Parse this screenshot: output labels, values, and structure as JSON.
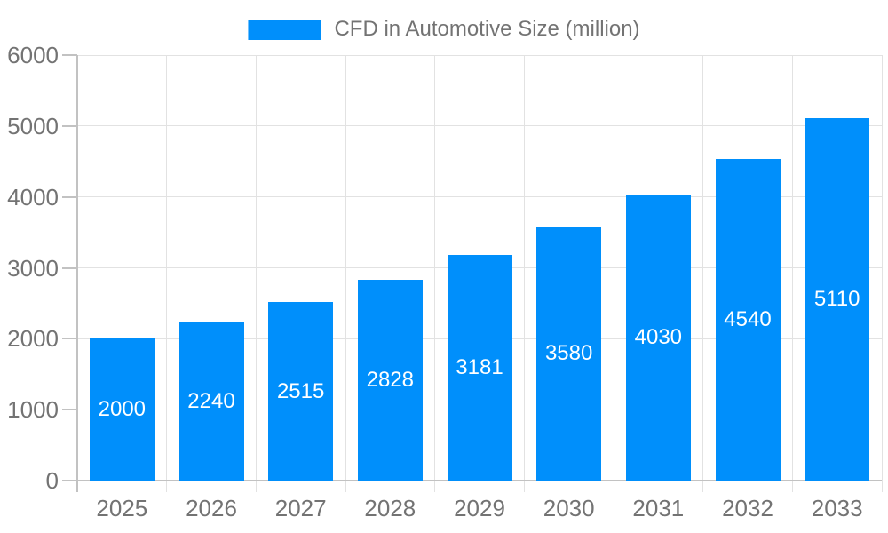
{
  "legend": {
    "label": "CFD in Automotive Size (million)",
    "swatch_color": "#008FFB"
  },
  "chart_data": {
    "type": "bar",
    "title": "CFD in Automotive Size (million)",
    "xlabel": "",
    "ylabel": "",
    "categories": [
      "2025",
      "2026",
      "2027",
      "2028",
      "2029",
      "2030",
      "2031",
      "2032",
      "2033"
    ],
    "values": [
      2000,
      2240,
      2515,
      2828,
      3181,
      3580,
      4030,
      4540,
      5110
    ],
    "data_labels": [
      "2000",
      "2240",
      "2515",
      "2828",
      "3181",
      "3580",
      "4030",
      "4540",
      "5110"
    ],
    "ylim": [
      0,
      6000
    ],
    "ytick_interval": 1000,
    "ytick_labels": [
      "0",
      "1000",
      "2000",
      "3000",
      "4000",
      "5000",
      "6000"
    ],
    "grid": true,
    "legend_position": "top",
    "bar_color": "#008FFB",
    "bar_label_color": "#ffffff",
    "axis_text_color": "#737373",
    "grid_color": "#e2e2e2",
    "axis_line_color": "#c2c2c2"
  }
}
